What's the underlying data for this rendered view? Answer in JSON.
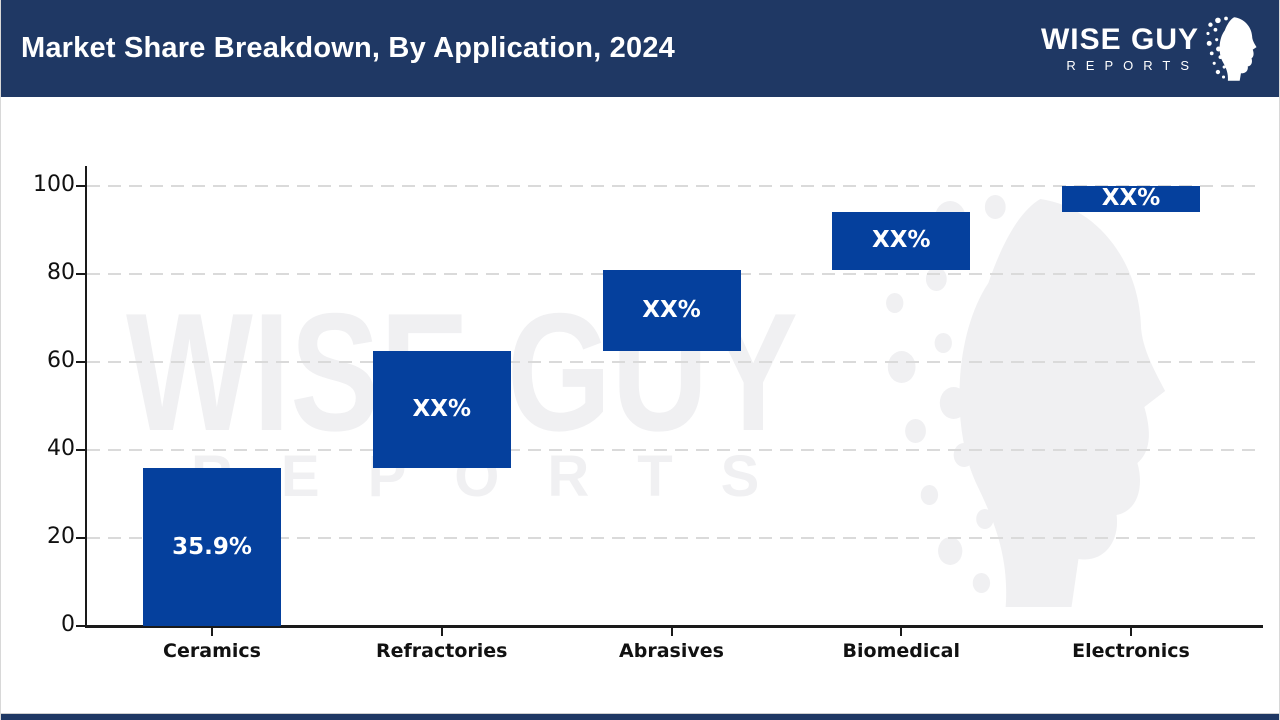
{
  "header": {
    "title": "Market Share Breakdown, By Application, 2024",
    "bg_color": "#1f3864",
    "logo": {
      "line1": "WISE GUY",
      "line2": "REPORTS"
    }
  },
  "watermark": {
    "line1": "WISE GUY",
    "line2": "REPORTS",
    "color": "#f0f0f2"
  },
  "footer": {
    "bg_color": "#1f3864"
  },
  "chart_data": {
    "type": "bar",
    "subtype": "waterfall",
    "title": "Market Share Breakdown, By Application, 2024",
    "categories": [
      "Ceramics",
      "Refractories",
      "Abrasives",
      "Biomedical",
      "Electronics"
    ],
    "segments": [
      {
        "category": "Ceramics",
        "start": 0,
        "end": 35.9,
        "label": "35.9%"
      },
      {
        "category": "Refractories",
        "start": 35.9,
        "end": 62.6,
        "label": "XX%"
      },
      {
        "category": "Abrasives",
        "start": 62.6,
        "end": 80.8,
        "label": "XX%"
      },
      {
        "category": "Biomedical",
        "start": 80.8,
        "end": 94.2,
        "label": "XX%"
      },
      {
        "category": "Electronics",
        "start": 94.2,
        "end": 100,
        "label": "XX%"
      }
    ],
    "xlabel": "",
    "ylabel": "",
    "ylim": [
      0,
      105
    ],
    "yticks": [
      0,
      20,
      40,
      60,
      80,
      100
    ],
    "grid": "horizontal-dashed",
    "legend": "none",
    "bar_color": "#05409d",
    "label_color": "#ffffff",
    "axis_color": "#1a1a1a",
    "grid_color": "#dadada"
  }
}
